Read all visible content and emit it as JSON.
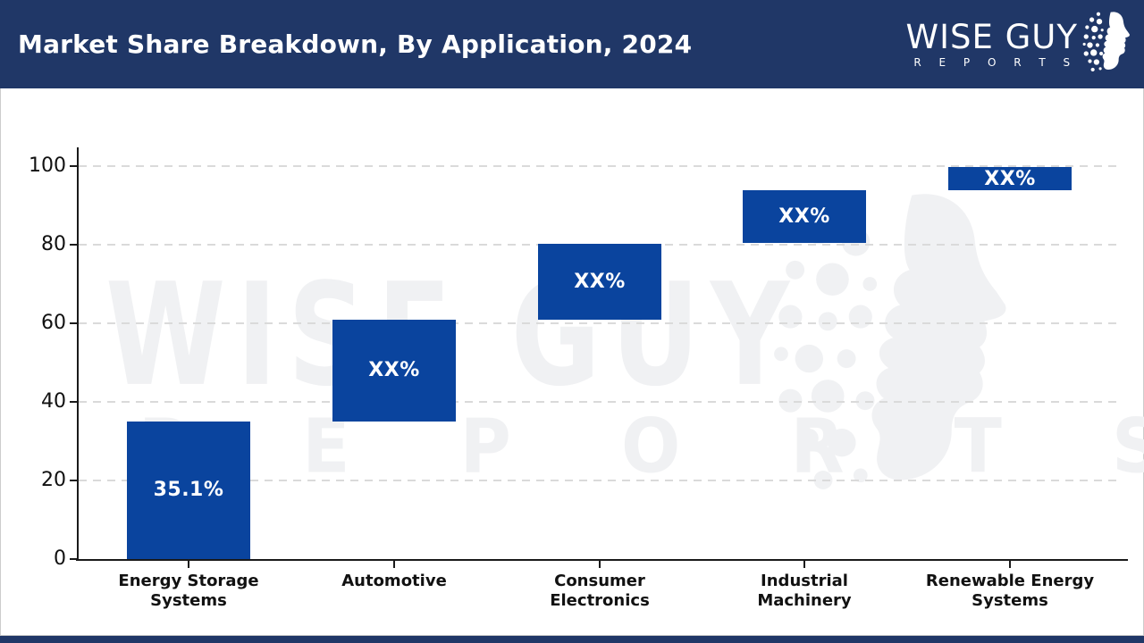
{
  "header": {
    "title": "Market Share Breakdown, By Application, 2024",
    "bg_color": "#203767",
    "logo": {
      "line1": "WISE GUY",
      "line2": "R E P O R T S"
    }
  },
  "watermark": {
    "line1": "WISE GUY",
    "line2": "R E P O R T S"
  },
  "chart_data": {
    "type": "bar",
    "variant": "floating-waterfall",
    "title": "Market Share Breakdown, By Application, 2024",
    "categories": [
      "Energy Storage\nSystems",
      "Automotive",
      "Consumer\nElectronics",
      "Industrial\nMachinery",
      "Renewable Energy\nSystems"
    ],
    "segments": [
      {
        "category": "Energy Storage Systems",
        "start": 0,
        "end": 35.1,
        "label": "35.1%"
      },
      {
        "category": "Automotive",
        "start": 35.1,
        "end": 61.0,
        "label": "XX%"
      },
      {
        "category": "Consumer Electronics",
        "start": 61.0,
        "end": 80.3,
        "label": "XX%"
      },
      {
        "category": "Industrial Machinery",
        "start": 80.5,
        "end": 93.8,
        "label": "XX%"
      },
      {
        "category": "Renewable Energy Systems",
        "start": 93.8,
        "end": 99.8,
        "label": "XX%"
      }
    ],
    "bar_labels": [
      "35.1%",
      "XX%",
      "XX%",
      "XX%",
      "XX%"
    ],
    "yticks": [
      0,
      20,
      40,
      60,
      80,
      100
    ],
    "ylim": [
      0,
      105
    ],
    "xlabel": "",
    "ylabel": "",
    "grid": "horizontal-dashed",
    "legend": false,
    "bar_color": "#0a449e",
    "bar_label_color": "#ffffff",
    "axis_color": "#1a1a1a",
    "grid_color": "#dadada"
  }
}
